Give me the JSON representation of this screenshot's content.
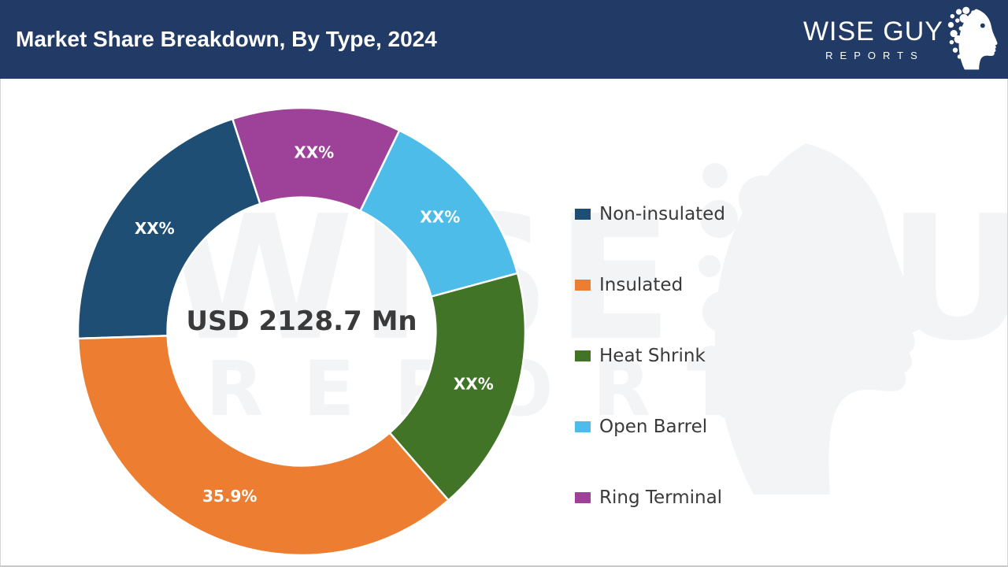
{
  "header": {
    "title": "Market Share Breakdown, By Type, 2024",
    "logo": {
      "line1": "WISE GUY",
      "line2": "REPORTS"
    }
  },
  "watermark": {
    "line1": "WISE GUY",
    "line2": "REPORTS"
  },
  "chart_data": {
    "type": "pie",
    "subtype": "donut",
    "title": "Market Share Breakdown, By Type, 2024",
    "center_label": "USD 2128.7 Mn",
    "start_angle": 108,
    "direction": "counterclockwise",
    "inner_radius_ratio": 0.6,
    "legend_position": "right",
    "segments": [
      {
        "label": "Non-insulated",
        "display_label": "XX%",
        "value_pct": 20.5,
        "color": "#1F4E74"
      },
      {
        "label": "Insulated",
        "display_label": "35.9%",
        "value_pct": 35.9,
        "color": "#ED7D31"
      },
      {
        "label": "Heat Shrink",
        "display_label": "XX%",
        "value_pct": 17.8,
        "color": "#417427"
      },
      {
        "label": "Open Barrel",
        "display_label": "XX%",
        "value_pct": 13.6,
        "color": "#4DBCE9"
      },
      {
        "label": "Ring Terminal",
        "display_label": "XX%",
        "value_pct": 12.2,
        "color": "#9E4198"
      }
    ]
  },
  "colors": {
    "header_bg": "#213A66",
    "content_bg": "#FFFFFF",
    "center_text": "#3A3A3A",
    "legend_text": "#3A3A3A",
    "segment_label_text": "#FFFFFF",
    "watermark": "#F3F4F6",
    "border": "#D5D5D5"
  }
}
